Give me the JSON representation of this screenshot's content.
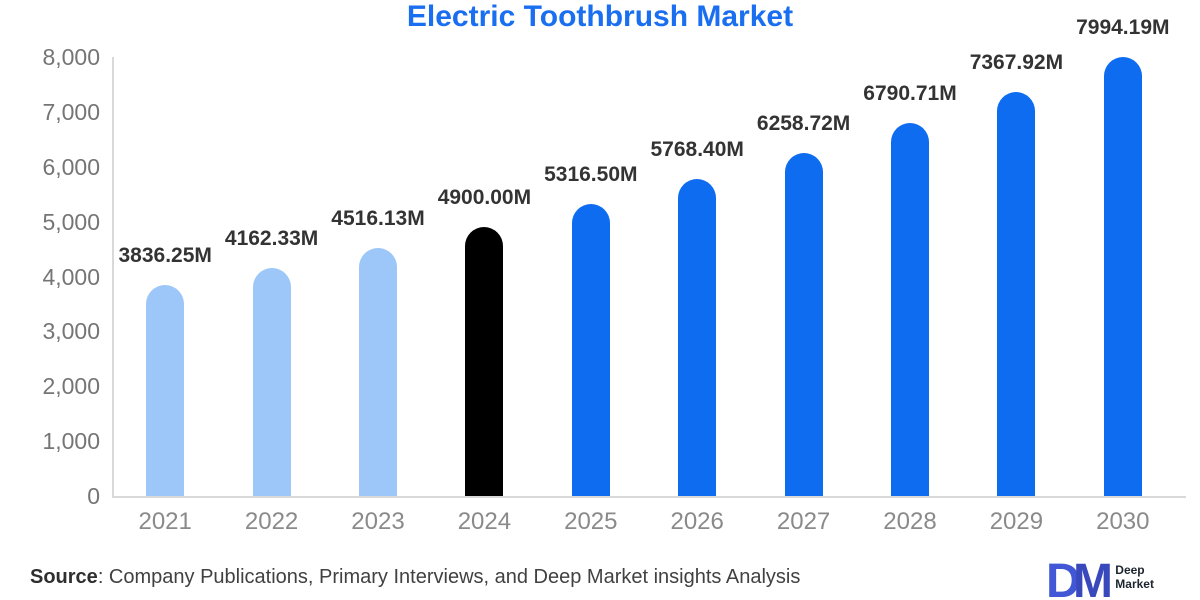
{
  "chart": {
    "title": "Electric Toothbrush Market",
    "title_color": "#1a6ef0",
    "axis_color": "#d9d9d9"
  },
  "chart_data": {
    "type": "bar",
    "title": "Electric Toothbrush Market",
    "categories": [
      "2021",
      "2022",
      "2023",
      "2024",
      "2025",
      "2026",
      "2027",
      "2028",
      "2029",
      "2030"
    ],
    "values": [
      3836.25,
      4162.33,
      4516.13,
      4900.0,
      5316.5,
      5768.4,
      6258.72,
      6790.71,
      7367.92,
      7994.19
    ],
    "data_labels": [
      "3836.25M",
      "4162.33M",
      "4516.13M",
      "4900.00M",
      "5316.50M",
      "5768.40M",
      "6258.72M",
      "6790.71M",
      "7367.92M",
      "7994.19M"
    ],
    "bar_colors": [
      "#9dc7f8",
      "#9dc7f8",
      "#9dc7f8",
      "#000000",
      "#0e6cf1",
      "#0e6cf1",
      "#0e6cf1",
      "#0e6cf1",
      "#0e6cf1",
      "#0e6cf1"
    ],
    "xlabel": "",
    "ylabel": "",
    "ylim": [
      0,
      8000
    ],
    "ytick_values": [
      0,
      1000,
      2000,
      3000,
      4000,
      5000,
      6000,
      7000,
      8000
    ],
    "ytick_labels": [
      "0",
      "1,000",
      "2,000",
      "3,000",
      "4,000",
      "5,000",
      "6,000",
      "7,000",
      "8,000"
    ],
    "grid": false,
    "legend": false
  },
  "source": {
    "label": "Source",
    "text": ": Company Publications, Primary Interviews, and Deep Market insights Analysis"
  },
  "logo": {
    "monogram_d": "D",
    "monogram_m": "M",
    "line1": "Deep",
    "line2": "Market"
  }
}
